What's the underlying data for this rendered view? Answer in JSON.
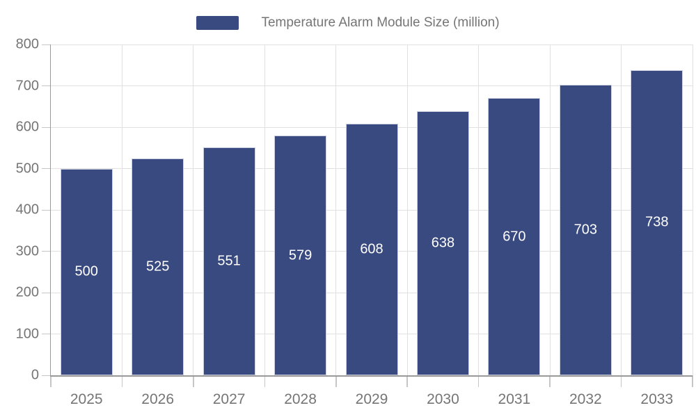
{
  "legend": {
    "label": "Temperature Alarm Module Size (million)"
  },
  "chart_data": {
    "type": "bar",
    "title": "Temperature Alarm Module Size (million)",
    "categories": [
      "2025",
      "2026",
      "2027",
      "2028",
      "2029",
      "2030",
      "2031",
      "2032",
      "2033"
    ],
    "series": [
      {
        "name": "Temperature Alarm Module Size (million)",
        "values": [
          500,
          525,
          551,
          579,
          608,
          638,
          670,
          703,
          738
        ]
      }
    ],
    "xlabel": "",
    "ylabel": "",
    "ylim": [
      0,
      800
    ],
    "y_ticks": [
      0,
      100,
      200,
      300,
      400,
      500,
      600,
      700,
      800
    ],
    "grid": true,
    "legend_position": "top",
    "bar_value_labels_inside": true
  },
  "colors": {
    "bar": "#394A80",
    "bar_border": "#CBCFDF",
    "bar_label": "#FFFFFF",
    "axis_line": "#999999",
    "tick": "#C6C6C6",
    "gridline": "#E0E0E0",
    "text": "#757575"
  }
}
